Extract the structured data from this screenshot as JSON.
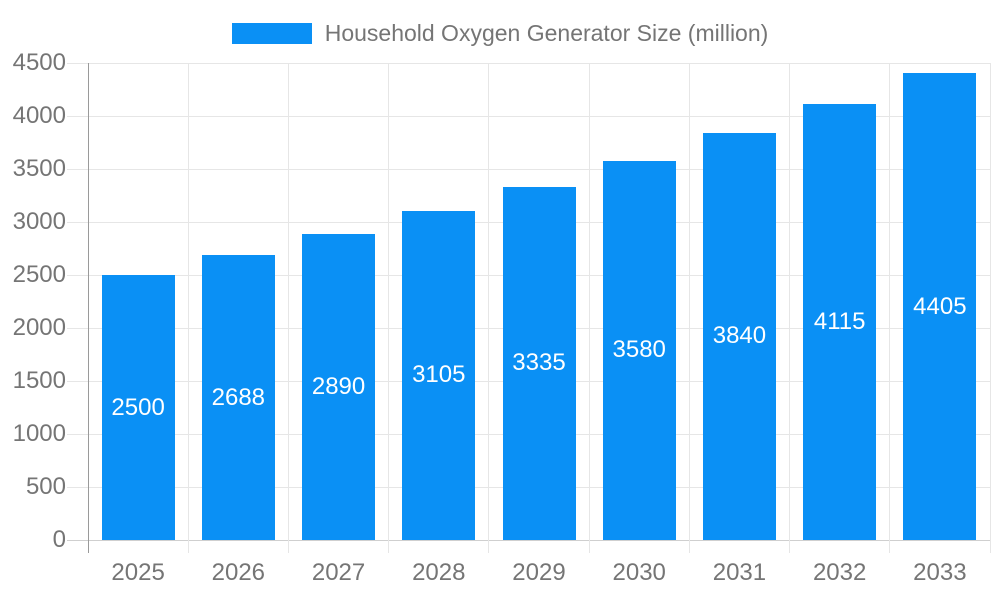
{
  "chart_data": {
    "type": "bar",
    "legend": "Household Oxygen Generator Size (million)",
    "legend_position": "top",
    "categories": [
      "2025",
      "2026",
      "2027",
      "2028",
      "2029",
      "2030",
      "2031",
      "2032",
      "2033"
    ],
    "values": [
      2500,
      2688,
      2890,
      3105,
      3335,
      3580,
      3840,
      4115,
      4405
    ],
    "xlabel": "",
    "ylabel": "",
    "ylim": [
      0,
      4500
    ],
    "y_tick_step": 500,
    "y_ticks": [
      0,
      500,
      1000,
      1500,
      2000,
      2500,
      3000,
      3500,
      4000,
      4500
    ],
    "grid": true,
    "colors": {
      "bar": "#0a90f5",
      "bar_value_label": "#ffffff",
      "axis_text": "#757575",
      "legend_text": "#757575",
      "gridline": "#e6e6e6",
      "zero_line": "#cfcfcf",
      "y_axis_line": "#9a9a9a",
      "background": "#ffffff"
    }
  }
}
